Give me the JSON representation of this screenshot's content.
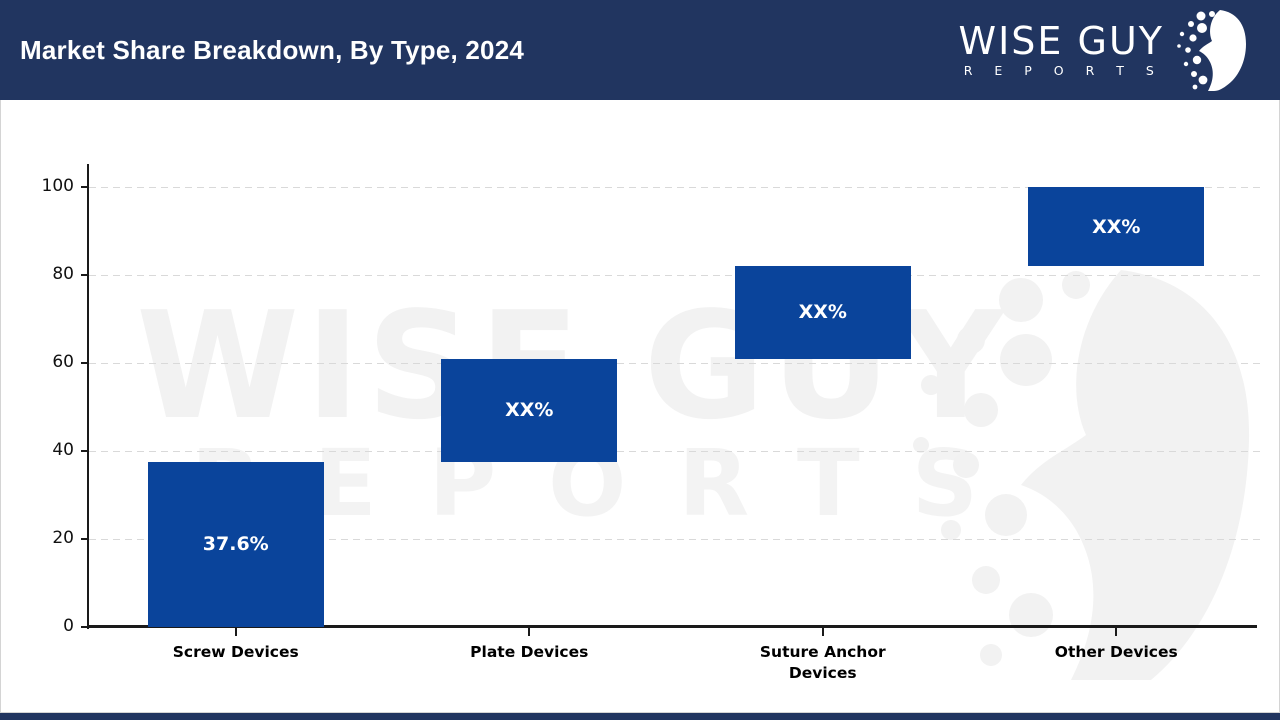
{
  "header": {
    "title": "Market Share Breakdown, By Type, 2024",
    "bg_color": "#213560",
    "logo": {
      "name": "WISE GUY",
      "sub": "R E P O R T S"
    }
  },
  "watermark": {
    "line1": "WISE GUY",
    "line2": "REPORTS"
  },
  "footer": {
    "bg_color": "#213560"
  },
  "chart_data": {
    "type": "bar",
    "variant": "waterfall",
    "title": "Market Share Breakdown, By Type, 2024",
    "categories": [
      "Screw Devices",
      "Plate Devices",
      "Suture Anchor Devices",
      "Other Devices"
    ],
    "segments": [
      {
        "category": "Screw Devices",
        "start": 0,
        "end": 37.6,
        "label": "37.6%"
      },
      {
        "category": "Plate Devices",
        "start": 37.6,
        "end": 61,
        "label": "XX%"
      },
      {
        "category": "Suture Anchor Devices",
        "start": 61,
        "end": 82,
        "label": "XX%"
      },
      {
        "category": "Other Devices",
        "start": 82,
        "end": 100,
        "label": "XX%"
      }
    ],
    "yticks": [
      0,
      20,
      40,
      60,
      80,
      100
    ],
    "ylim": [
      0,
      105
    ],
    "xlabel": "",
    "ylabel": "",
    "legend": false,
    "grid": "horizontal-dashed",
    "bar_color": "#0a449b",
    "bar_label_color": "#ffffff",
    "axis_color": "#1a1a1a",
    "grid_color": "#d9d9d9"
  }
}
